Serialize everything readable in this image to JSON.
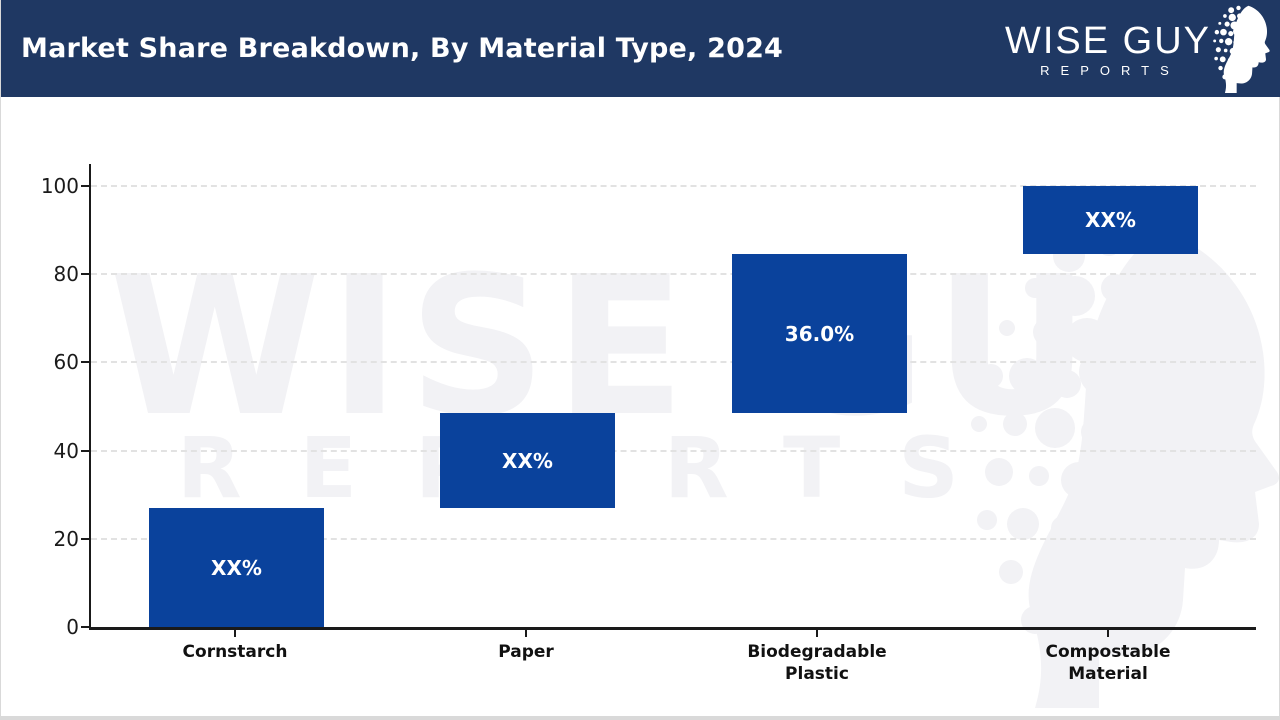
{
  "header": {
    "title": "Market Share Breakdown, By Material Type, 2024",
    "bg_color": "#1f3863",
    "logo": {
      "line1": "WISE GUY",
      "line2": "REPORTS",
      "head_icon": "dotted-head-profile"
    }
  },
  "watermark": {
    "line1": "WISE GU",
    "line2": "REPORTS",
    "head_icon": "dotted-head-profile"
  },
  "chart_data": {
    "type": "bar",
    "subtype": "floating-bar-waterfall",
    "title": "Market Share Breakdown, By Material Type, 2024",
    "categories": [
      "Cornstarch",
      "Paper",
      "Biodegradable\nPlastic",
      "Compostable\nMaterial"
    ],
    "series": [
      {
        "name": "Market Share (%)",
        "segments": [
          {
            "category": "Cornstarch",
            "start": 0,
            "end": 27,
            "label": "XX%"
          },
          {
            "category": "Paper",
            "start": 27,
            "end": 48.5,
            "label": "XX%"
          },
          {
            "category": "Biodegradable Plastic",
            "start": 48.5,
            "end": 84.5,
            "label": "36.0%"
          },
          {
            "category": "Compostable Material",
            "start": 84.5,
            "end": 100,
            "label": "XX%"
          }
        ]
      }
    ],
    "ylim": [
      0,
      100
    ],
    "yticks": [
      0,
      20,
      40,
      60,
      80,
      100
    ],
    "xlabel": "",
    "ylabel": "",
    "legend": "none",
    "grid": {
      "axis": "y",
      "style": "dashed",
      "color": "#e2e2e2"
    },
    "colors": {
      "bar": "#0a429c",
      "bar_label": "#ffffff",
      "axis": "#1a1a1a",
      "tick_label": "#1a1a1a"
    }
  }
}
